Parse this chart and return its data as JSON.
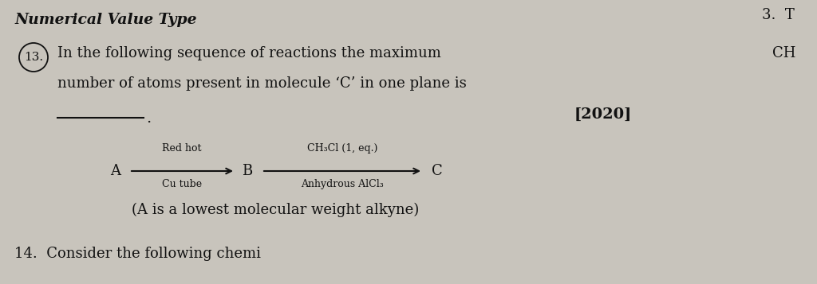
{
  "background_color": "#c8c4bc",
  "title": "Numerical Value Type",
  "title_fontsize": 13.5,
  "q_number": "13.",
  "question_text_line1": "In the following sequence of reactions the maximum",
  "question_text_line2": "number of atoms present in molecule ‘C’ in one plane is",
  "blank_line": "___________.",
  "year_tag": "[2020]",
  "reaction_A": "A",
  "reaction_B": "B",
  "reaction_C": "C",
  "arrow1_top": "Red hot",
  "arrow1_bottom": "Cu tube",
  "arrow2_top": "CH₃Cl (1, eq.)",
  "arrow2_bottom": "Anhydrous AlCl₃",
  "footnote": "(A is a lowest molecular weight alkyne)",
  "q14_text": "14.  Consider the following chemi",
  "right_col_3T": "3.  T",
  "right_col_CH": "CH",
  "text_color": "#111111",
  "font_family": "DejaVu Serif"
}
